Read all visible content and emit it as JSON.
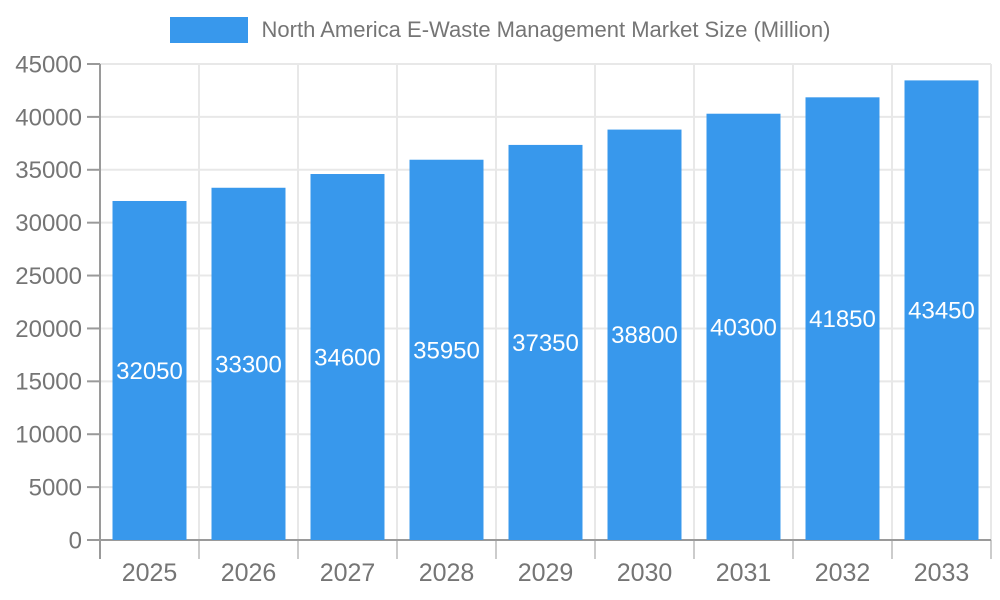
{
  "legend": {
    "label": "North America E-Waste Management Market Size (Million)"
  },
  "chart_data": {
    "type": "bar",
    "title": "North America E-Waste Management Market Size (Million)",
    "categories": [
      "2025",
      "2026",
      "2027",
      "2028",
      "2029",
      "2030",
      "2031",
      "2032",
      "2033"
    ],
    "values": [
      32050,
      33300,
      34600,
      35950,
      37350,
      38800,
      40300,
      41850,
      43450
    ],
    "xlabel": "",
    "ylabel": "",
    "ylim": [
      0,
      45000
    ],
    "ytick_step": 5000,
    "yticks": [
      0,
      5000,
      10000,
      15000,
      20000,
      25000,
      30000,
      35000,
      40000,
      45000
    ],
    "grid": true,
    "legend_position": "top",
    "value_labels": "inside-center",
    "colors": {
      "bar": "#3898ec",
      "value_label": "#ffffff",
      "axis_text": "#757575",
      "grid_line": "#e8e8e8",
      "axis_line": "#9a9a9a",
      "category_tick": "#cccccc",
      "background": "#ffffff"
    }
  }
}
